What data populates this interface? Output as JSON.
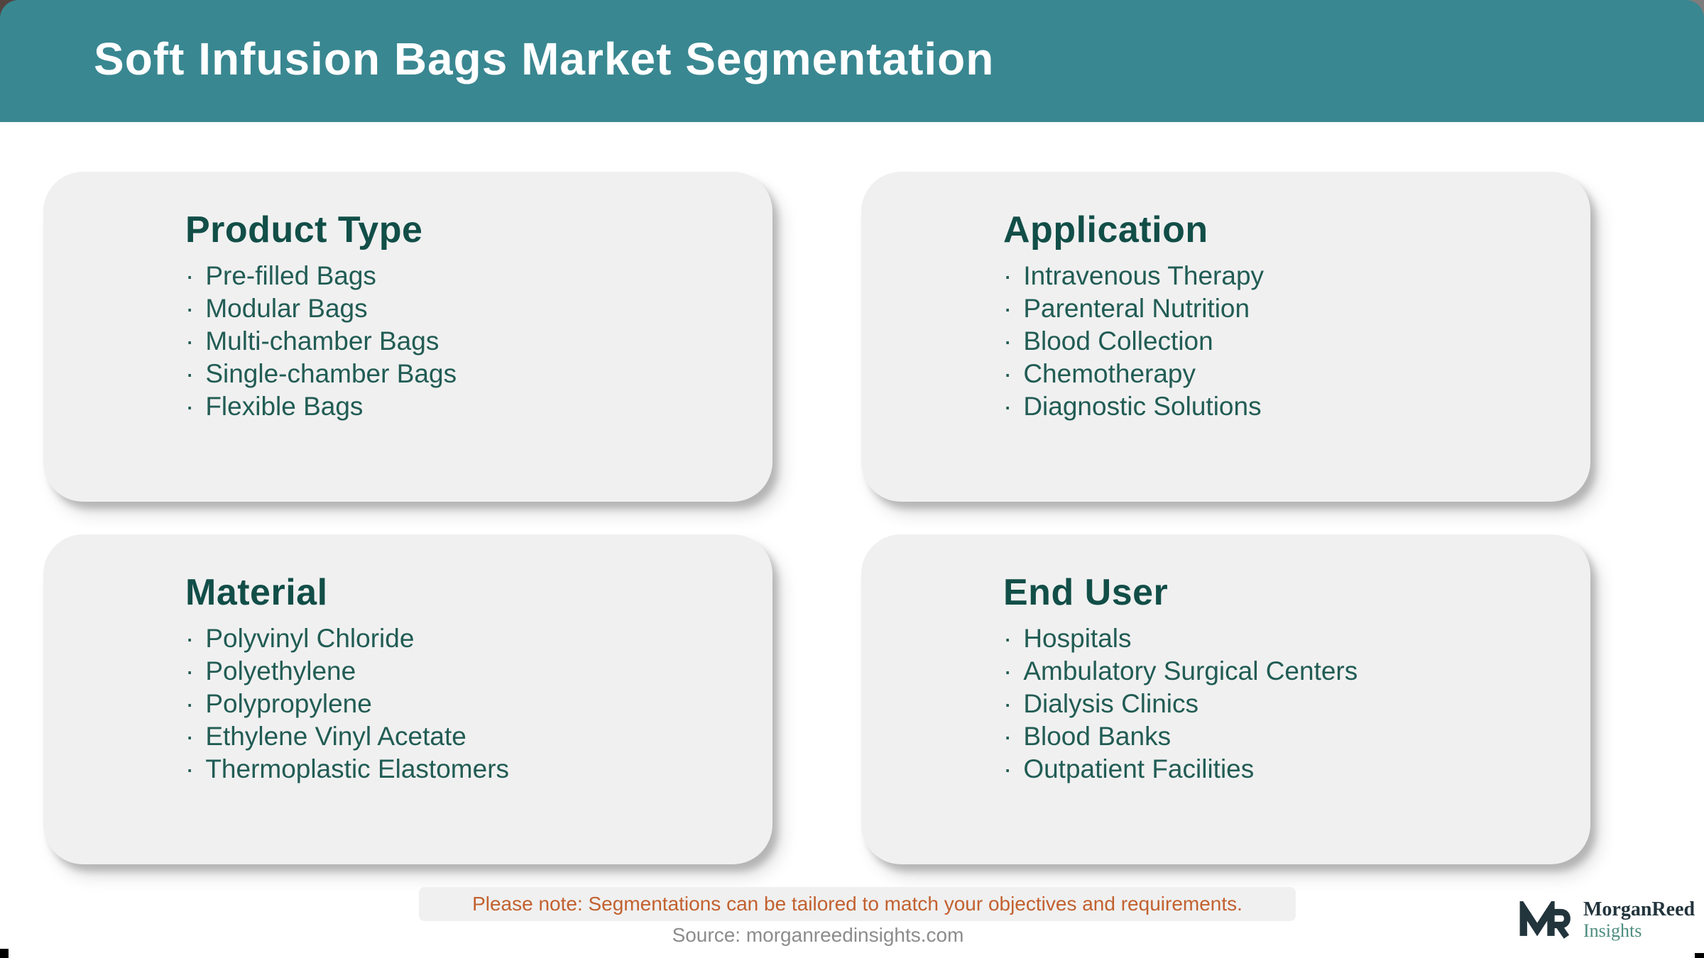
{
  "header": {
    "title": "Soft Infusion Bags Market Segmentation"
  },
  "bullet": "·",
  "cards": [
    {
      "title": "Product Type",
      "items": [
        "Pre-filled Bags",
        "Modular Bags",
        "Multi-chamber Bags",
        "Single-chamber Bags",
        "Flexible Bags"
      ]
    },
    {
      "title": "Application",
      "items": [
        "Intravenous Therapy",
        "Parenteral Nutrition",
        "Blood Collection",
        "Chemotherapy",
        "Diagnostic Solutions"
      ]
    },
    {
      "title": "Material",
      "items": [
        "Polyvinyl Chloride",
        "Polyethylene",
        "Polypropylene",
        "Ethylene Vinyl Acetate",
        "Thermoplastic Elastomers"
      ]
    },
    {
      "title": "End User",
      "items": [
        "Hospitals",
        "Ambulatory Surgical Centers",
        "Dialysis Clinics",
        "Blood Banks",
        "Outpatient Facilities"
      ]
    }
  ],
  "footer": {
    "note": "Please note: Segmentations can be tailored to match your objectives and requirements.",
    "source": "Source: morganreedinsights.com"
  },
  "logo": {
    "monogram": "MR",
    "name_primary": "Morgan",
    "name_secondary": "Reed",
    "subtitle": "Insights"
  },
  "colors": {
    "header_bg": "#398791",
    "card_bg": "#f0f0f0",
    "card_title": "#124e48",
    "card_item": "#215c54",
    "note_text": "#c2612f",
    "note_bg": "#f0f0f0",
    "source_text": "#8c8c8c",
    "logo_dark": "#22343c",
    "logo_teal": "#4c8c7d"
  }
}
